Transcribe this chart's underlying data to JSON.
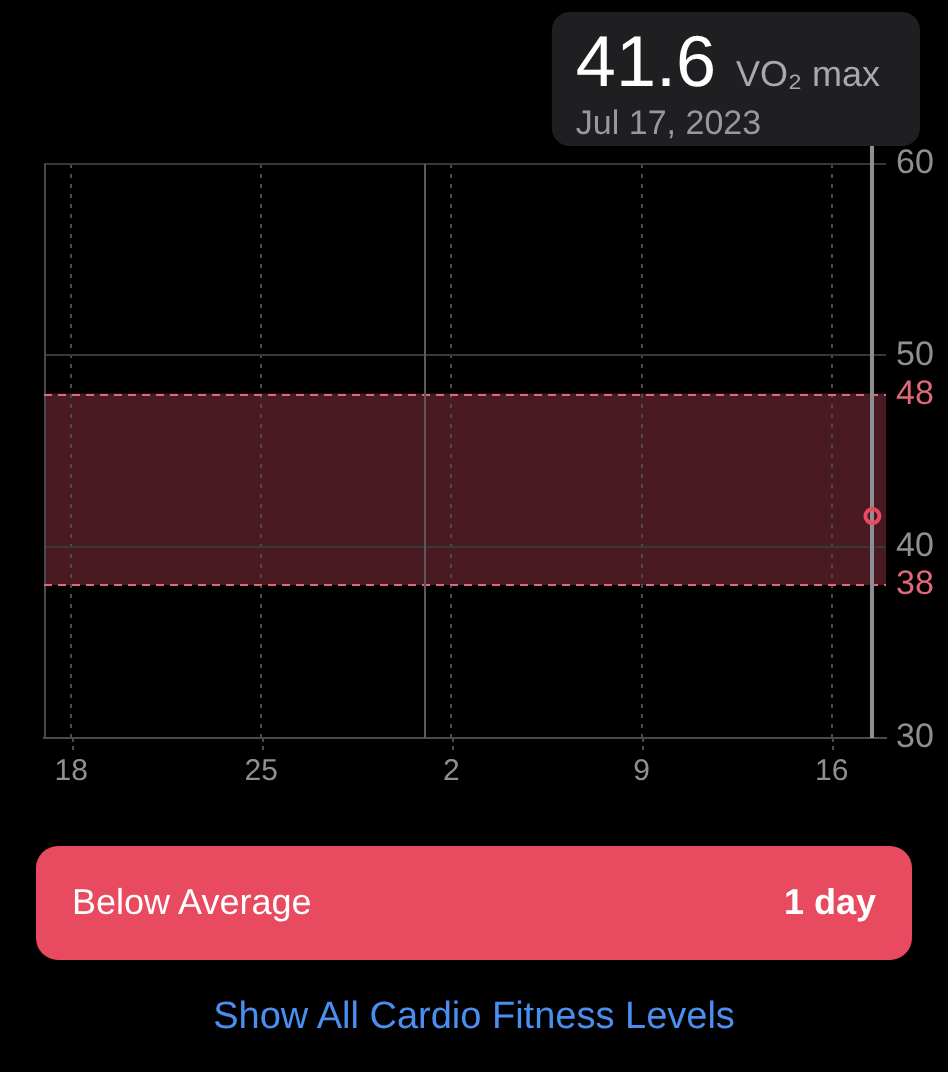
{
  "chart_data": {
    "type": "scatter",
    "x": [
      "2023-07-17T12:00"
    ],
    "values": [
      41.6
    ],
    "color": "#e84a5f",
    "marker": "circle",
    "xlim": [
      "2023-06-17",
      "2023-07-18"
    ],
    "xticks": [
      {
        "value": "2023-06-18",
        "label": "18"
      },
      {
        "value": "2023-06-25",
        "label": "25"
      },
      {
        "value": "2023-07-02",
        "label": "2"
      },
      {
        "value": "2023-07-09",
        "label": "9"
      },
      {
        "value": "2023-07-16",
        "label": "16"
      }
    ],
    "ylim": [
      30,
      60
    ],
    "yticks": [
      30,
      40,
      50,
      60
    ],
    "grid": true,
    "bands": [
      {
        "axis": "y",
        "from": 38,
        "to": 48,
        "color": "#4a1a22"
      }
    ],
    "ref_lines": [
      {
        "axis": "y",
        "value": 48,
        "label": "48",
        "color": "#e0687a",
        "line_style": "dashed"
      },
      {
        "axis": "y",
        "value": 38,
        "label": "38",
        "color": "#e0687a",
        "line_style": "dashed"
      },
      {
        "axis": "x",
        "value": "2023-07-01",
        "color": "#5a5a5e",
        "line_style": "solid"
      }
    ],
    "annotations": [
      "41.6",
      "VO₂ max",
      "Jul 17, 2023",
      "Below Average",
      "1 day",
      "Show All Cardio Fitness Levels"
    ]
  }
}
